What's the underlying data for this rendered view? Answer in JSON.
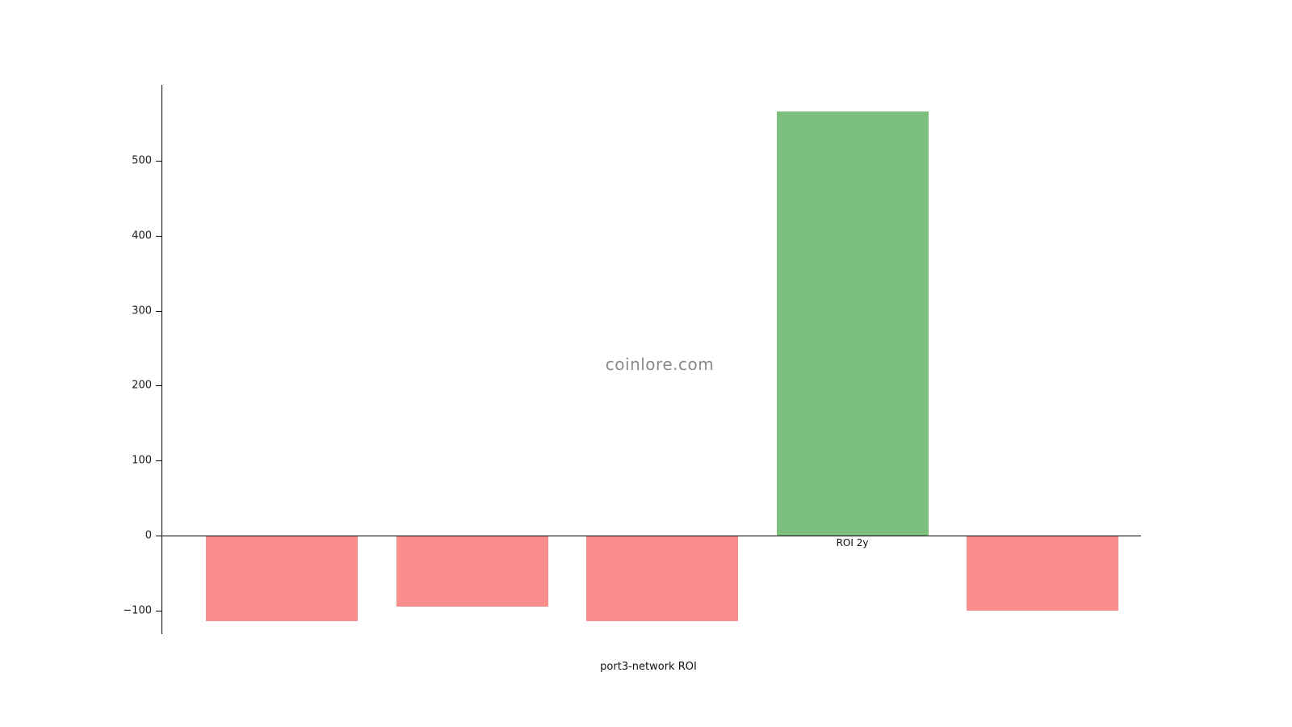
{
  "page": {
    "background": "#ffffff"
  },
  "watermark": {
    "text": "coinlore.com",
    "color": "#8a8a8a"
  },
  "title": {
    "text": "port3-network ROI"
  },
  "chart_data": {
    "type": "bar",
    "title": "port3-network ROI",
    "categories": [
      "",
      "",
      "",
      "ROI 2y",
      ""
    ],
    "values": [
      -114,
      -95,
      -114,
      566,
      -100
    ],
    "series": [
      {
        "name": "ROI",
        "values": [
          -114,
          -95,
          -114,
          566,
          -100
        ]
      }
    ],
    "bar_colors": [
      "#fc8d8d",
      "#fc8d8d",
      "#fc8d8d",
      "#7dbf7d",
      "#fc8d8d"
    ],
    "positive_color": "#7dbf7d",
    "negative_color": "#fc8d8d",
    "visible_bar_label": "ROI 2y",
    "xlabel": "",
    "ylabel": "",
    "ylim": [
      -131,
      601
    ],
    "grid": false,
    "legend_position": "none",
    "y_ticks": [
      {
        "value": 500,
        "label": "500"
      },
      {
        "value": 400,
        "label": "400"
      },
      {
        "value": 300,
        "label": "300"
      },
      {
        "value": 200,
        "label": "200"
      },
      {
        "value": 100,
        "label": "100"
      },
      {
        "value": 0,
        "label": "0"
      },
      {
        "value": -100,
        "label": "−100"
      }
    ],
    "watermark": "coinlore.com"
  },
  "axis": {
    "line_color": "#000000",
    "tick_label_color": "#1c1c1c"
  }
}
